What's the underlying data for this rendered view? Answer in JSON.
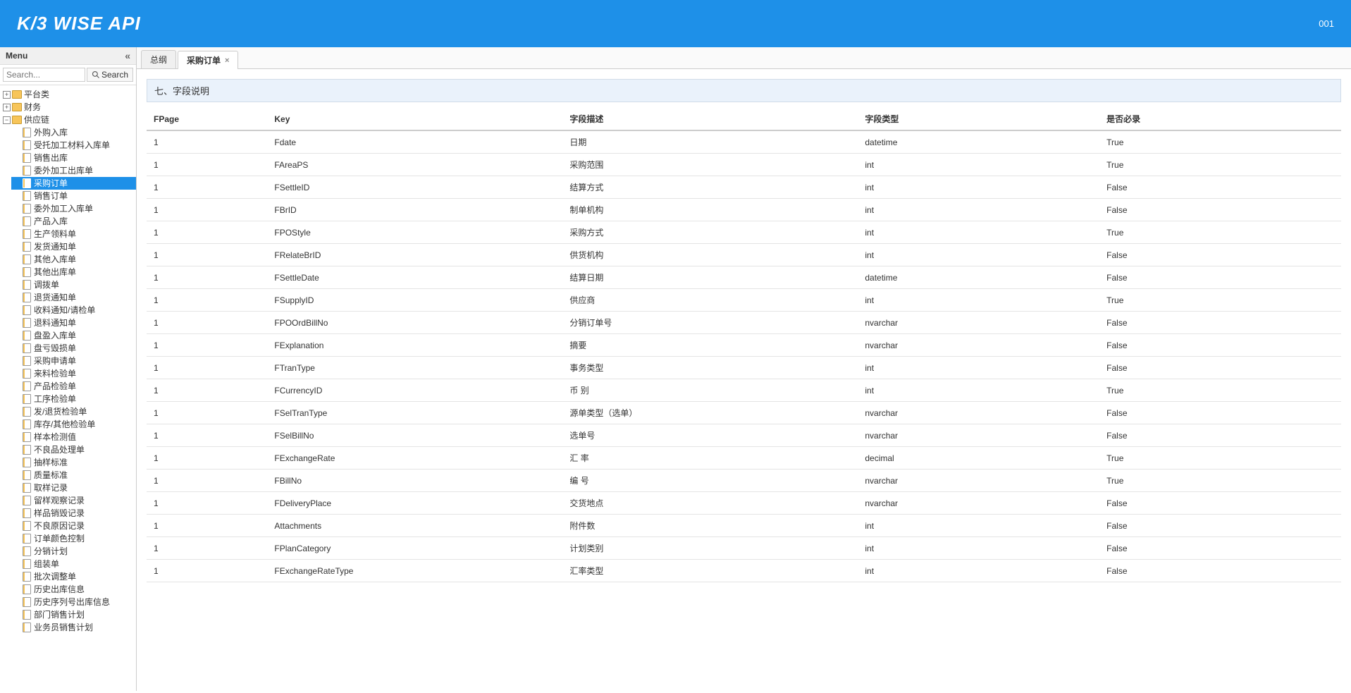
{
  "header": {
    "title": "K/3 WISE API",
    "code": "001"
  },
  "sidebar": {
    "menu_label": "Menu",
    "search_placeholder": "Search...",
    "search_button": "Search",
    "tree": [
      {
        "label": "平台类",
        "type": "folder",
        "expanded": false
      },
      {
        "label": "财务",
        "type": "folder",
        "expanded": false
      },
      {
        "label": "供应链",
        "type": "folder",
        "expanded": true,
        "children": [
          {
            "label": "外购入库",
            "type": "file"
          },
          {
            "label": "受托加工材料入库单",
            "type": "file"
          },
          {
            "label": "销售出库",
            "type": "file"
          },
          {
            "label": "委外加工出库单",
            "type": "file"
          },
          {
            "label": "采购订单",
            "type": "file",
            "selected": true
          },
          {
            "label": "销售订单",
            "type": "file"
          },
          {
            "label": "委外加工入库单",
            "type": "file"
          },
          {
            "label": "产品入库",
            "type": "file"
          },
          {
            "label": "生产领料单",
            "type": "file"
          },
          {
            "label": "发货通知单",
            "type": "file"
          },
          {
            "label": "其他入库单",
            "type": "file"
          },
          {
            "label": "其他出库单",
            "type": "file"
          },
          {
            "label": "调拨单",
            "type": "file"
          },
          {
            "label": "退货通知单",
            "type": "file"
          },
          {
            "label": "收料通知/请检单",
            "type": "file"
          },
          {
            "label": "退料通知单",
            "type": "file"
          },
          {
            "label": "盘盈入库单",
            "type": "file"
          },
          {
            "label": "盘亏毁损单",
            "type": "file"
          },
          {
            "label": "采购申请单",
            "type": "file"
          },
          {
            "label": "来料检验单",
            "type": "file"
          },
          {
            "label": "产品检验单",
            "type": "file"
          },
          {
            "label": "工序检验单",
            "type": "file"
          },
          {
            "label": "发/退货检验单",
            "type": "file"
          },
          {
            "label": "库存/其他检验单",
            "type": "file"
          },
          {
            "label": "样本检测值",
            "type": "file"
          },
          {
            "label": "不良品处理单",
            "type": "file"
          },
          {
            "label": "抽样标准",
            "type": "file"
          },
          {
            "label": "质量标准",
            "type": "file"
          },
          {
            "label": "取样记录",
            "type": "file"
          },
          {
            "label": "留样观察记录",
            "type": "file"
          },
          {
            "label": "样品销毁记录",
            "type": "file"
          },
          {
            "label": "不良原因记录",
            "type": "file"
          },
          {
            "label": "订单颜色控制",
            "type": "file"
          },
          {
            "label": "分销计划",
            "type": "file"
          },
          {
            "label": "组装单",
            "type": "file"
          },
          {
            "label": "批次调整单",
            "type": "file"
          },
          {
            "label": "历史出库信息",
            "type": "file"
          },
          {
            "label": "历史序列号出库信息",
            "type": "file"
          },
          {
            "label": "部门销售计划",
            "type": "file"
          },
          {
            "label": "业务员销售计划",
            "type": "file"
          }
        ]
      }
    ]
  },
  "tabs": [
    {
      "label": "总纲",
      "closable": false,
      "active": false
    },
    {
      "label": "采购订单",
      "closable": true,
      "active": true
    }
  ],
  "section_title": "七、字段说明",
  "table": {
    "columns": [
      "FPage",
      "Key",
      "字段描述",
      "字段类型",
      "是否必录"
    ],
    "col_widths": [
      "9%",
      "22%",
      "22%",
      "18%",
      "18%"
    ],
    "rows": [
      [
        "1",
        "Fdate",
        "日期",
        "datetime",
        "True"
      ],
      [
        "1",
        "FAreaPS",
        "采购范围",
        "int",
        "True"
      ],
      [
        "1",
        "FSettleID",
        "结算方式",
        "int",
        "False"
      ],
      [
        "1",
        "FBrID",
        "制单机构",
        "int",
        "False"
      ],
      [
        "1",
        "FPOStyle",
        "采购方式",
        "int",
        "True"
      ],
      [
        "1",
        "FRelateBrID",
        "供货机构",
        "int",
        "False"
      ],
      [
        "1",
        "FSettleDate",
        "结算日期",
        "datetime",
        "False"
      ],
      [
        "1",
        "FSupplyID",
        "供应商",
        "int",
        "True"
      ],
      [
        "1",
        "FPOOrdBillNo",
        "分销订单号",
        "nvarchar",
        "False"
      ],
      [
        "1",
        "FExplanation",
        "摘要",
        "nvarchar",
        "False"
      ],
      [
        "1",
        "FTranType",
        "事务类型",
        "int",
        "False"
      ],
      [
        "1",
        "FCurrencyID",
        "币 别",
        "int",
        "True"
      ],
      [
        "1",
        "FSelTranType",
        "源单类型（选单）",
        "nvarchar",
        "False"
      ],
      [
        "1",
        "FSelBillNo",
        "选单号",
        "nvarchar",
        "False"
      ],
      [
        "1",
        "FExchangeRate",
        "汇 率",
        "decimal",
        "True"
      ],
      [
        "1",
        "FBillNo",
        "编 号",
        "nvarchar",
        "True"
      ],
      [
        "1",
        "FDeliveryPlace",
        "交货地点",
        "nvarchar",
        "False"
      ],
      [
        "1",
        "Attachments",
        "附件数",
        "int",
        "False"
      ],
      [
        "1",
        "FPlanCategory",
        "计划类别",
        "int",
        "False"
      ],
      [
        "1",
        "FExchangeRateType",
        "汇率类型",
        "int",
        "False"
      ]
    ]
  }
}
